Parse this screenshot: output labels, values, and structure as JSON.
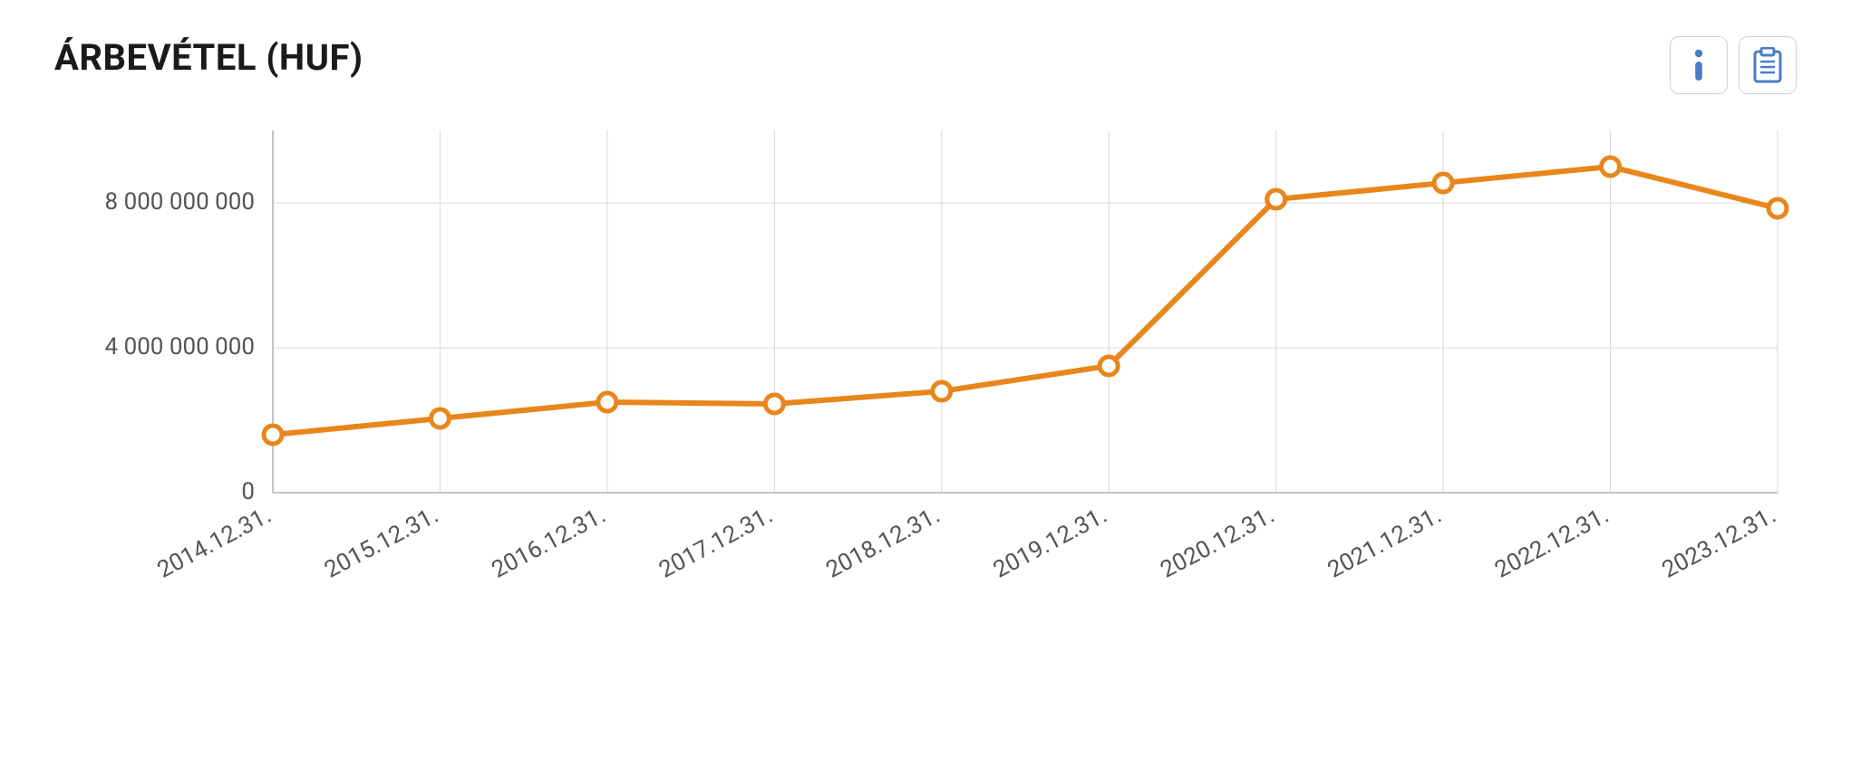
{
  "title": "ÁRBEVÉTEL (HUF)",
  "chart": {
    "type": "line",
    "categories": [
      "2014.12.31.",
      "2015.12.31.",
      "2016.12.31.",
      "2017.12.31.",
      "2018.12.31.",
      "2019.12.31.",
      "2020.12.31.",
      "2021.12.31.",
      "2022.12.31.",
      "2023.12.31."
    ],
    "values": [
      1600000000,
      2050000000,
      2500000000,
      2450000000,
      2800000000,
      3500000000,
      8100000000,
      8550000000,
      9000000000,
      7850000000
    ],
    "line_color": "#e8861c",
    "line_width": 6,
    "marker_radius": 10,
    "marker_fill": "#ffffff",
    "marker_stroke": "#e8861c",
    "marker_stroke_width": 5,
    "y_ticks": [
      0,
      4000000000,
      8000000000
    ],
    "y_tick_labels": [
      "0",
      "4 000 000 000",
      "8 000 000 000"
    ],
    "ylim": [
      0,
      10000000000
    ],
    "grid_color": "#d8d8d8",
    "axis_color": "#b0b0b0",
    "background_color": "#ffffff",
    "tick_label_fontsize": 26,
    "tick_label_color": "#555555",
    "title_fontsize": 40,
    "title_color": "#1a1a1a",
    "x_label_rotation": -28
  },
  "icons": {
    "info": "info-icon",
    "clipboard": "clipboard-icon",
    "icon_color": "#4a7bc8"
  }
}
